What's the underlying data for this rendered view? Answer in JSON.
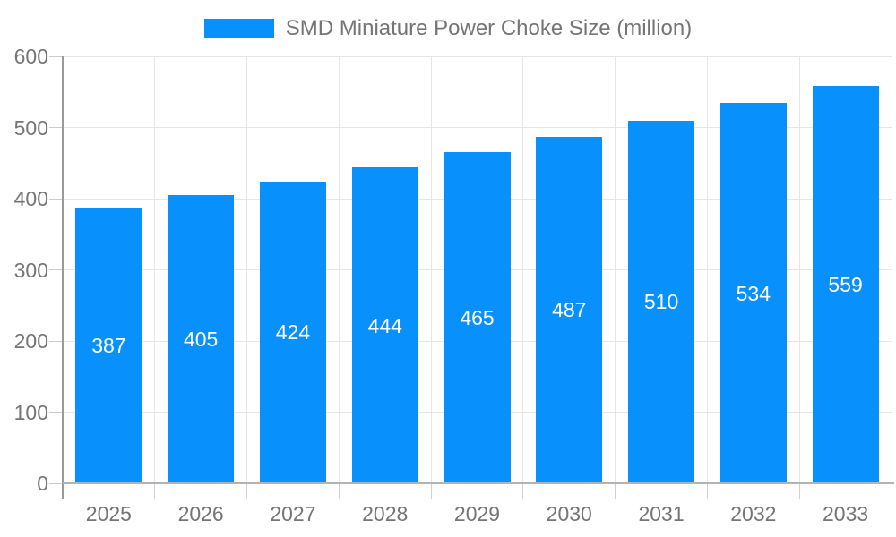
{
  "legend": {
    "label": "SMD Miniature Power Choke Size (million)"
  },
  "chart_data": {
    "type": "bar",
    "title": "SMD Miniature Power Choke Size (million)",
    "categories": [
      "2025",
      "2026",
      "2027",
      "2028",
      "2029",
      "2030",
      "2031",
      "2032",
      "2033"
    ],
    "values": [
      387,
      405,
      424,
      444,
      465,
      487,
      510,
      534,
      559
    ],
    "xlabel": "",
    "ylabel": "",
    "ylim": [
      0,
      600
    ],
    "yticks": [
      0,
      100,
      200,
      300,
      400,
      500,
      600
    ],
    "grid": true,
    "legend_position": "top-center",
    "bar_value_labels": "inside-center",
    "colors": {
      "bar": "#0890fc",
      "bar_label": "#ffffff",
      "axis_text": "#757575",
      "grid_line": "#e6e6e6",
      "axis_line": "#999999",
      "baseline": "#b3b3b3",
      "tick": "#cccccc",
      "background": "#ffffff"
    }
  }
}
